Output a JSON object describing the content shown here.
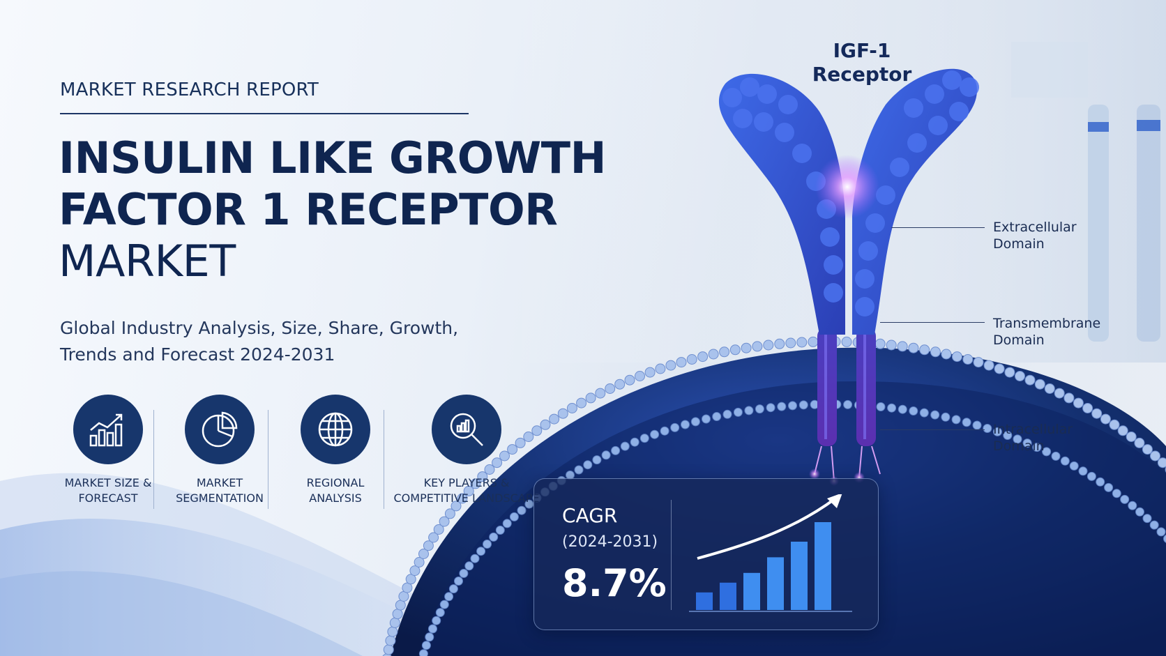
{
  "header": {
    "eyebrow": "MARKET RESEARCH REPORT",
    "title_line1": "INSULIN LIKE GROWTH",
    "title_line2": "FACTOR 1 RECEPTOR",
    "title_line3": "MARKET",
    "subtitle_line1": "Global Industry Analysis, Size, Share, Growth,",
    "subtitle_line2": "Trends and Forecast 2024-2031"
  },
  "features": [
    {
      "icon": "bar-chart-growth-icon",
      "line1": "MARKET SIZE &",
      "line2": "FORECAST"
    },
    {
      "icon": "pie-chart-icon",
      "line1": "MARKET",
      "line2": "SEGMENTATION"
    },
    {
      "icon": "globe-icon",
      "line1": "REGIONAL",
      "line2": "ANALYSIS"
    },
    {
      "icon": "magnifier-chart-icon",
      "line1": "KEY PLAYERS &",
      "line2": "COMPETITIVE LANDSCAPE"
    }
  ],
  "receptor": {
    "title_line1": "IGF-1",
    "title_line2": "Receptor",
    "domains": [
      {
        "line1": "Extracellular",
        "line2": "Domain"
      },
      {
        "line1": "Transmembrane",
        "line2": "Domain"
      },
      {
        "line1": "Intracellular",
        "line2": "Domain"
      }
    ]
  },
  "cagr": {
    "label": "CAGR",
    "period": "(2024-2031)",
    "value": "8.7%",
    "bar_levels": [
      0.18,
      0.28,
      0.38,
      0.54,
      0.7,
      0.9
    ]
  },
  "colors": {
    "navy": "#0f2550",
    "icon_circle": "#17366c",
    "protein_blue": "#3b5bd9",
    "glow_purple": "#c77dff",
    "bar_blue": "#3f8ef0"
  }
}
